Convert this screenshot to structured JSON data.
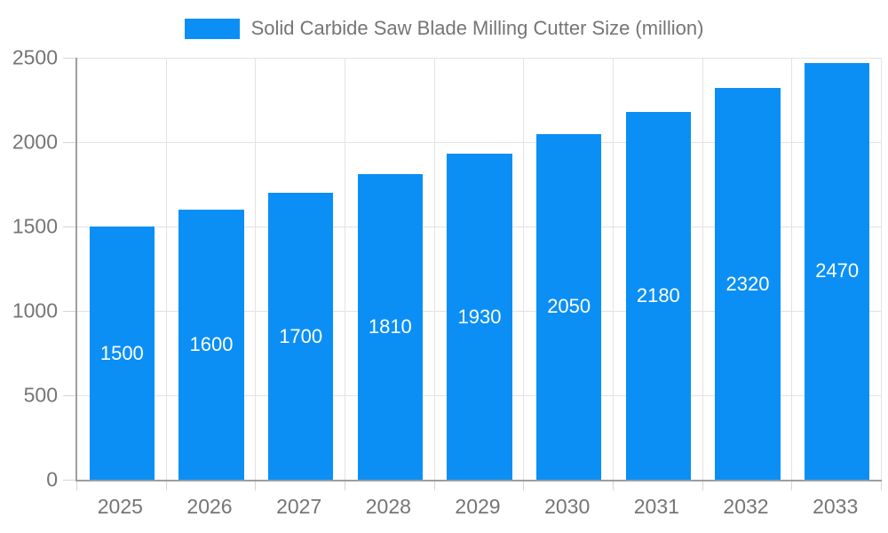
{
  "chart_data": {
    "type": "bar",
    "title": "Solid Carbide Saw Blade Milling Cutter Size (million)",
    "categories": [
      "2025",
      "2026",
      "2027",
      "2028",
      "2029",
      "2030",
      "2031",
      "2032",
      "2033"
    ],
    "values": [
      1500,
      1600,
      1700,
      1810,
      1930,
      2050,
      2180,
      2320,
      2470
    ],
    "xlabel": "",
    "ylabel": "",
    "ylim": [
      0,
      2500
    ],
    "yticks": [
      0,
      500,
      1000,
      1500,
      2000,
      2500
    ],
    "grid": true,
    "legend_position": "top",
    "bar_labels_inside": true,
    "colors": {
      "bar": "#0b8ff5",
      "bar_label": "#ffffff",
      "axis_text": "#757575",
      "gridline": "#e3e3e3",
      "axis_line": "#9e9e9e",
      "tick": "#d5d5d5",
      "background": "#ffffff"
    }
  }
}
